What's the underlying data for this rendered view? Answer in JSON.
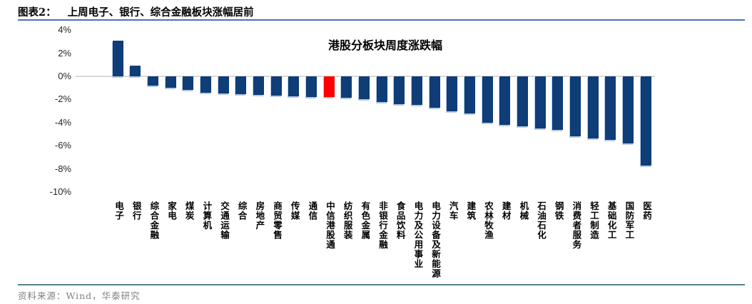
{
  "header": {
    "figure_label": "图表2：",
    "title": "上周电子、银行、综合金融板块涨幅居前"
  },
  "chart_data": {
    "type": "bar",
    "title": "港股分板块周度涨跌幅",
    "categories": [
      "电子",
      "银行",
      "综合金融",
      "家电",
      "煤炭",
      "计算机",
      "交通运输",
      "综合",
      "房地产",
      "商贸零售",
      "传媒",
      "通信",
      "中信港股通",
      "纺织服装",
      "有色金属",
      "非银行金融",
      "食品饮料",
      "电力及公用事业",
      "电力设备及新能源",
      "汽车",
      "建筑",
      "农林牧渔",
      "建材",
      "机械",
      "石油石化",
      "钢铁",
      "消费者服务",
      "轻工制造",
      "基础化工",
      "国防军工",
      "医药"
    ],
    "values": [
      3.1,
      0.9,
      -0.8,
      -1.0,
      -1.2,
      -1.4,
      -1.5,
      -1.55,
      -1.6,
      -1.65,
      -1.75,
      -1.8,
      -1.8,
      -1.85,
      -1.95,
      -2.2,
      -2.4,
      -2.45,
      -2.7,
      -3.0,
      -3.2,
      -4.0,
      -4.2,
      -4.35,
      -4.5,
      -4.6,
      -5.2,
      -5.35,
      -5.5,
      -5.8,
      -7.7
    ],
    "unit": "%",
    "ylim": [
      -10,
      4
    ],
    "yticks": [
      {
        "label": "4%",
        "value": 4
      },
      {
        "label": "2%",
        "value": 2
      },
      {
        "label": "0%",
        "value": 0
      },
      {
        "label": "-2%",
        "value": -2
      },
      {
        "label": "-4%",
        "value": -4
      },
      {
        "label": "-6%",
        "value": -6
      },
      {
        "label": "-8%",
        "value": -8
      },
      {
        "label": "-10%",
        "value": -10
      }
    ],
    "grid": "zero-line-only",
    "legend": "none",
    "bar_color": "#0e3d78",
    "highlight_color": "#ff0000",
    "highlight_index": 12,
    "highlight_category": "中信港股通"
  },
  "footer": {
    "source": "资料来源：Wind，华泰研究"
  }
}
